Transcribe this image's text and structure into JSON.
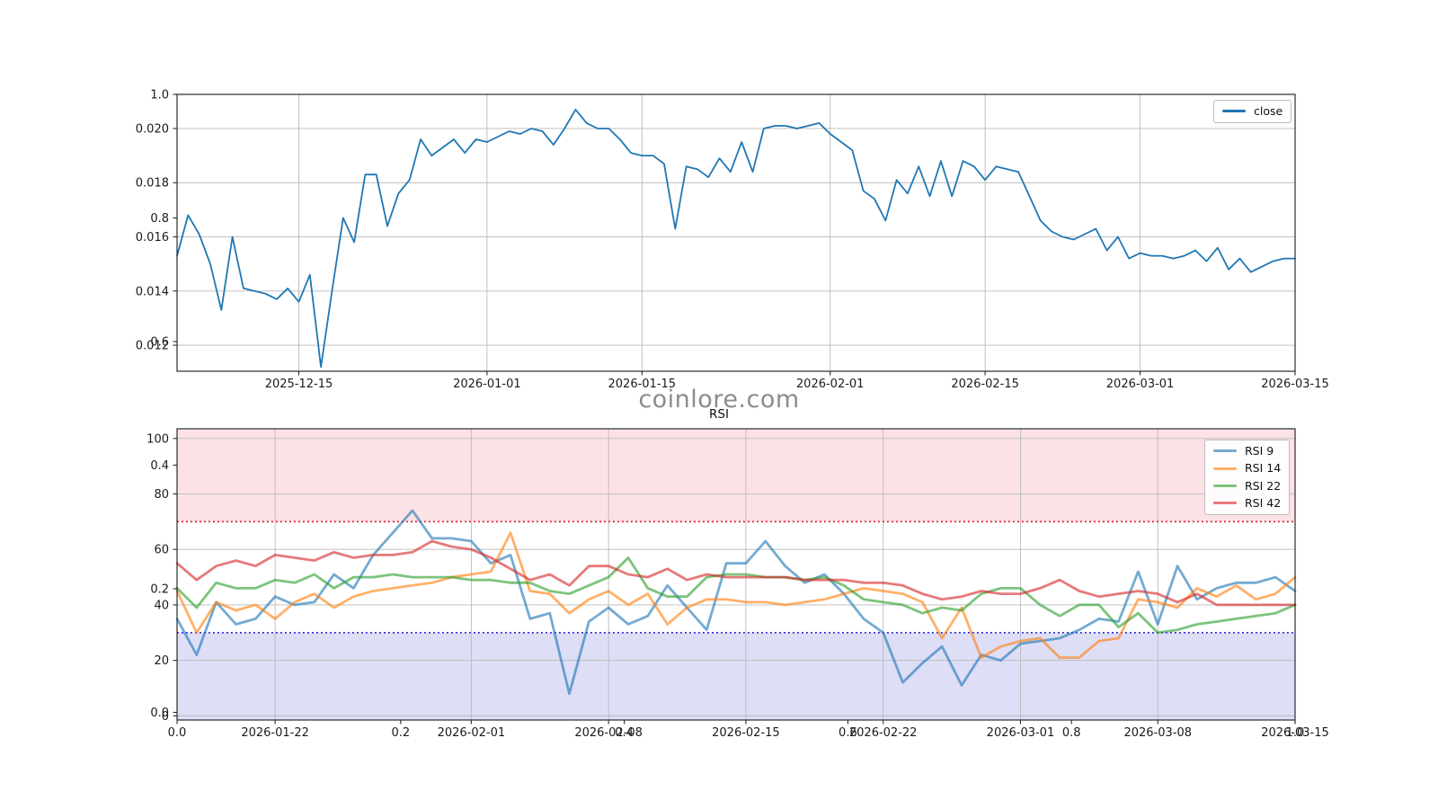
{
  "page": {
    "watermark": "coinlore.com",
    "title_rsi": "RSI"
  },
  "overlay_axis": {
    "xticks": [
      "0.0",
      "0.2",
      "0.4",
      "0.6",
      "0.8",
      "1.0"
    ],
    "yticks_top_to_bottom": [
      "1.0",
      "0.8",
      "0.6",
      "0.4",
      "0.2",
      "0.0"
    ]
  },
  "chart_data": [
    {
      "type": "line",
      "name": "price",
      "x_start_date": "2025-12-04",
      "x_end_date": "2026-03-15",
      "points": 102,
      "ylim": [
        0.01104,
        0.02126
      ],
      "grid": true,
      "legend_loc": "upper right",
      "yticks": [
        {
          "v": 0.02,
          "label": "0.020"
        },
        {
          "v": 0.018,
          "label": "0.018"
        },
        {
          "v": 0.016,
          "label": "0.016"
        },
        {
          "v": 0.014,
          "label": "0.014"
        },
        {
          "v": 0.012,
          "label": "0.012"
        }
      ],
      "xticks": [
        {
          "day": 11,
          "label": "2025-12-15"
        },
        {
          "day": 28,
          "label": "2026-01-01"
        },
        {
          "day": 42,
          "label": "2026-01-15"
        },
        {
          "day": 59,
          "label": "2026-02-01"
        },
        {
          "day": 73,
          "label": "2026-02-15"
        },
        {
          "day": 87,
          "label": "2026-03-01"
        },
        {
          "day": 101,
          "label": "2026-03-15"
        }
      ],
      "bands": [],
      "thresholds": [],
      "series": [
        {
          "name": "close",
          "color": "#1f77b4",
          "line_width": 1.8,
          "values": [
            0.0153,
            0.0168,
            0.0161,
            0.015,
            0.0133,
            0.016,
            0.0141,
            0.014,
            0.0139,
            0.0137,
            0.0141,
            0.0136,
            0.0146,
            0.0112,
            0.014,
            0.0167,
            0.0158,
            0.0183,
            0.0183,
            0.0164,
            0.0176,
            0.0181,
            0.0196,
            0.019,
            0.0193,
            0.0196,
            0.0191,
            0.0196,
            0.0195,
            0.0197,
            0.0199,
            0.0198,
            0.02,
            0.0199,
            0.0194,
            0.02,
            0.0207,
            0.0202,
            0.02,
            0.02,
            0.0196,
            0.0191,
            0.019,
            0.019,
            0.0187,
            0.0163,
            0.0186,
            0.0185,
            0.0182,
            0.0189,
            0.0184,
            0.0195,
            0.0184,
            0.02,
            0.0201,
            0.0201,
            0.02,
            0.0201,
            0.0202,
            0.0198,
            0.0195,
            0.0192,
            0.0177,
            0.0174,
            0.0166,
            0.0181,
            0.0176,
            0.0186,
            0.0175,
            0.0188,
            0.0175,
            0.0188,
            0.0186,
            0.0181,
            0.0186,
            0.0185,
            0.0184,
            0.0175,
            0.0166,
            0.0162,
            0.016,
            0.0159,
            0.0161,
            0.0163,
            0.0155,
            0.016,
            0.0152,
            0.0154,
            0.0153,
            0.0153,
            0.0152,
            0.0153,
            0.0155,
            0.0151,
            0.0156,
            0.0148,
            0.0152,
            0.0147,
            0.0149,
            0.0151,
            0.0152,
            0.0152
          ]
        }
      ]
    },
    {
      "type": "line",
      "name": "rsi",
      "title": "RSI",
      "x_start_date": "2026-01-17",
      "x_end_date": "2026-03-15",
      "points": 58,
      "ylim": [
        -1.5,
        103.5
      ],
      "grid": true,
      "legend_loc": "upper right",
      "yticks": [
        {
          "v": 100,
          "label": "100"
        },
        {
          "v": 80,
          "label": "80"
        },
        {
          "v": 60,
          "label": "60"
        },
        {
          "v": 40,
          "label": "40"
        },
        {
          "v": 20,
          "label": "20"
        },
        {
          "v": 0,
          "label": "0"
        }
      ],
      "xticks": [
        {
          "day": 5,
          "label": "2026-01-22"
        },
        {
          "day": 15,
          "label": "2026-02-01"
        },
        {
          "day": 22,
          "label": "2026-02-08"
        },
        {
          "day": 29,
          "label": "2026-02-15"
        },
        {
          "day": 36,
          "label": "2026-02-22"
        },
        {
          "day": 43,
          "label": "2026-03-01"
        },
        {
          "day": 50,
          "label": "2026-03-08"
        },
        {
          "day": 57,
          "label": "2026-03-15"
        }
      ],
      "bands": [
        {
          "from": 70,
          "to": 103.5,
          "color": "#fce2e5",
          "meaning": "overbought"
        },
        {
          "from": -1.5,
          "to": 30,
          "color": "#dedef6",
          "meaning": "oversold"
        }
      ],
      "thresholds": [
        {
          "value": 70,
          "color": "#e0102c",
          "style": "dotted"
        },
        {
          "value": 30,
          "color": "#1a1ad6",
          "style": "dotted"
        }
      ],
      "series": [
        {
          "name": "RSI 9",
          "color": "rgba(31,119,180,0.62)",
          "line_width": 2.8,
          "values": [
            35,
            22,
            41,
            33,
            35,
            43,
            40,
            41,
            51,
            46,
            58,
            66,
            74,
            64,
            64,
            63,
            55,
            58,
            35,
            37,
            8,
            34,
            39,
            33,
            36,
            47,
            39,
            31,
            55,
            55,
            63,
            54,
            48,
            51,
            44,
            35,
            30,
            12,
            19,
            25,
            11,
            22,
            20,
            26,
            27,
            28,
            31,
            35,
            34,
            52,
            33,
            54,
            42,
            46,
            48,
            48,
            50,
            45
          ]
        },
        {
          "name": "RSI 14",
          "color": "rgba(255,127,14,0.62)",
          "line_width": 2.8,
          "values": [
            45,
            30,
            41,
            38,
            40,
            35,
            41,
            44,
            39,
            43,
            45,
            46,
            47,
            48,
            50,
            51,
            52,
            66,
            45,
            44,
            37,
            42,
            45,
            40,
            44,
            33,
            39,
            42,
            42,
            41,
            41,
            40,
            41,
            42,
            44,
            46,
            45,
            44,
            41,
            28,
            39,
            21,
            25,
            27,
            28,
            21,
            21,
            27,
            28,
            42,
            41,
            39,
            46,
            43,
            47,
            42,
            44,
            50
          ]
        },
        {
          "name": "RSI 22",
          "color": "rgba(44,160,44,0.62)",
          "line_width": 2.8,
          "values": [
            46,
            39,
            48,
            46,
            46,
            49,
            48,
            51,
            46,
            50,
            50,
            51,
            50,
            50,
            50,
            49,
            49,
            48,
            48,
            45,
            44,
            47,
            50,
            57,
            46,
            43,
            43,
            50,
            51,
            51,
            50,
            50,
            49,
            50,
            47,
            42,
            41,
            40,
            37,
            39,
            38,
            44,
            46,
            46,
            40,
            36,
            40,
            40,
            32,
            37,
            30,
            31,
            33,
            34,
            35,
            36,
            37,
            40
          ]
        },
        {
          "name": "RSI 42",
          "color": "rgba(214,39,40,0.62)",
          "line_width": 2.8,
          "values": [
            55,
            49,
            54,
            56,
            54,
            58,
            57,
            56,
            59,
            57,
            58,
            58,
            59,
            63,
            61,
            60,
            57,
            53,
            49,
            51,
            47,
            54,
            54,
            51,
            50,
            53,
            49,
            51,
            50,
            50,
            50,
            50,
            49,
            49,
            49,
            48,
            48,
            47,
            44,
            42,
            43,
            45,
            44,
            44,
            46,
            49,
            45,
            43,
            44,
            45,
            44,
            41,
            44,
            40,
            40,
            40,
            40,
            40
          ]
        }
      ]
    }
  ]
}
